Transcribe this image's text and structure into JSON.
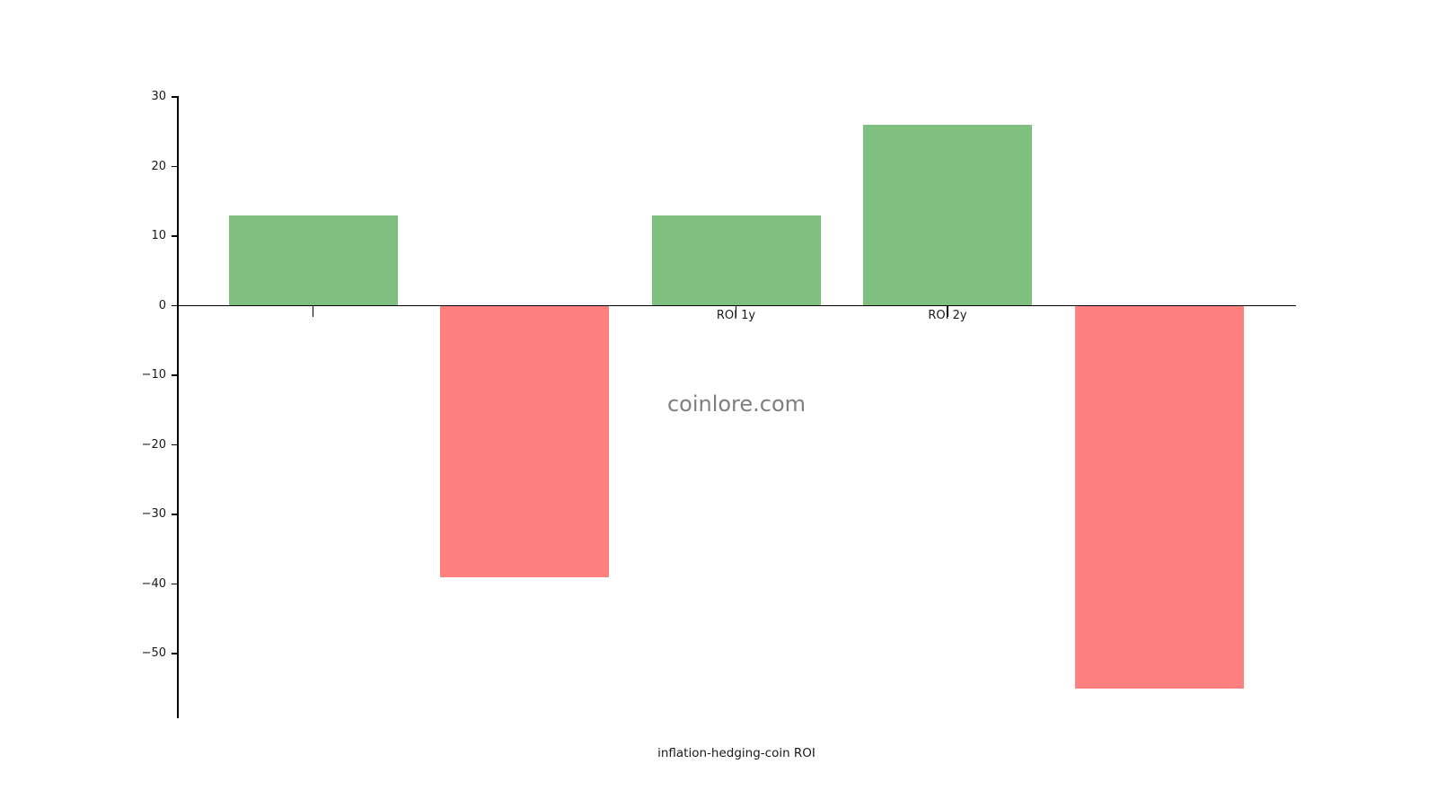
{
  "chart": {
    "title": "inflation-hedging-coin ROI",
    "watermark": "coinlore.com"
  },
  "chart_data": {
    "type": "bar",
    "title": "inflation-hedging-coin ROI",
    "watermark": "coinlore.com",
    "categories": [
      "",
      "",
      "ROI 1y",
      "ROI 2y",
      ""
    ],
    "values": [
      13,
      -39,
      13,
      26,
      -55
    ],
    "series": [
      {
        "name": "ROI",
        "values": [
          13,
          -39,
          13,
          26,
          -55
        ]
      }
    ],
    "x_tick_marks_visible": [
      true,
      false,
      true,
      true,
      false
    ],
    "yticks": [
      30,
      20,
      10,
      0,
      -10,
      -20,
      -30,
      -40,
      -50
    ],
    "ylim": [
      -59.2,
      30.3
    ],
    "xlabel": "",
    "ylabel": "",
    "grid": false,
    "legend_position": "none",
    "positive_color": "#7fbf7f",
    "negative_color": "#ff8080",
    "axis_color": "#000000",
    "tick_label_color": "#1a1a1a",
    "watermark_color": "#7f7f7f"
  }
}
